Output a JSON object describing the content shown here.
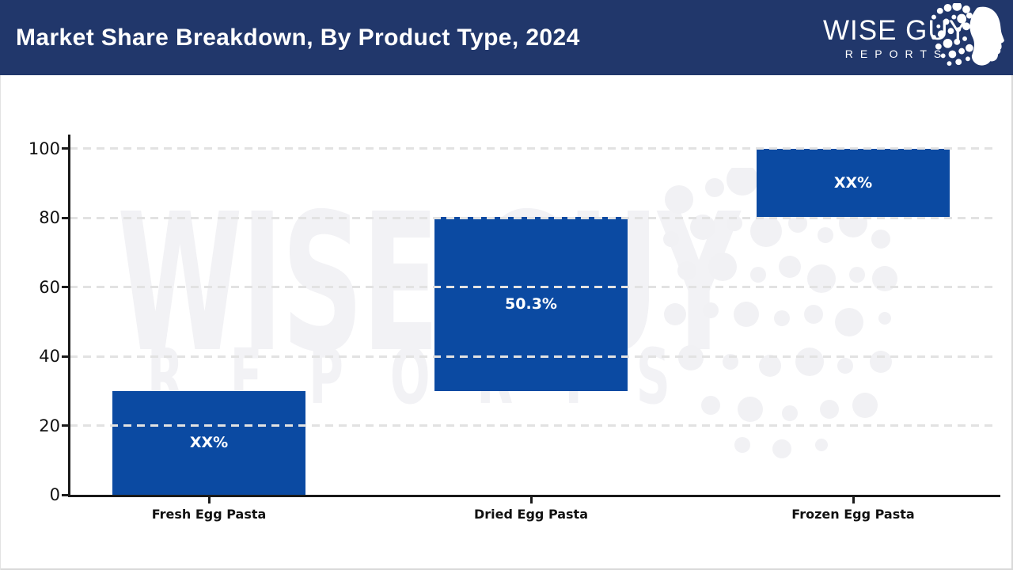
{
  "header": {
    "title": "Market Share Breakdown, By Product Type, 2024",
    "logo": {
      "line1": "WISE GUY",
      "line2": "REPORTS"
    }
  },
  "watermark": {
    "line1": "WISE GUY",
    "line2": "REPORTS"
  },
  "chart_data": {
    "type": "bar",
    "subtype": "floating-segment-waterfall",
    "title": "Market Share Breakdown, By Product Type, 2024",
    "categories": [
      "Fresh Egg Pasta",
      "Dried Egg Pasta",
      "Frozen Egg Pasta"
    ],
    "bars": [
      {
        "category": "Fresh Egg Pasta",
        "start": 0,
        "end": 30,
        "value_label": "XX%"
      },
      {
        "category": "Dried Egg Pasta",
        "start": 30,
        "end": 80.3,
        "value_label": "50.3%"
      },
      {
        "category": "Frozen Egg Pasta",
        "start": 80.3,
        "end": 100,
        "value_label": "XX%"
      }
    ],
    "yticks": [
      0,
      20,
      40,
      60,
      80,
      100
    ],
    "ylim": [
      0,
      104
    ],
    "grid": "horizontal-dashed",
    "legend": "none",
    "xlabel": "",
    "ylabel": "",
    "colors": {
      "bar": "#0b4aa2",
      "bar_label": "#ffffff",
      "grid": "#e2e2e2",
      "axis": "#1a1a1a",
      "header_bg": "#21376b",
      "header_text": "#ffffff",
      "watermark": "#f2f2f5"
    }
  }
}
